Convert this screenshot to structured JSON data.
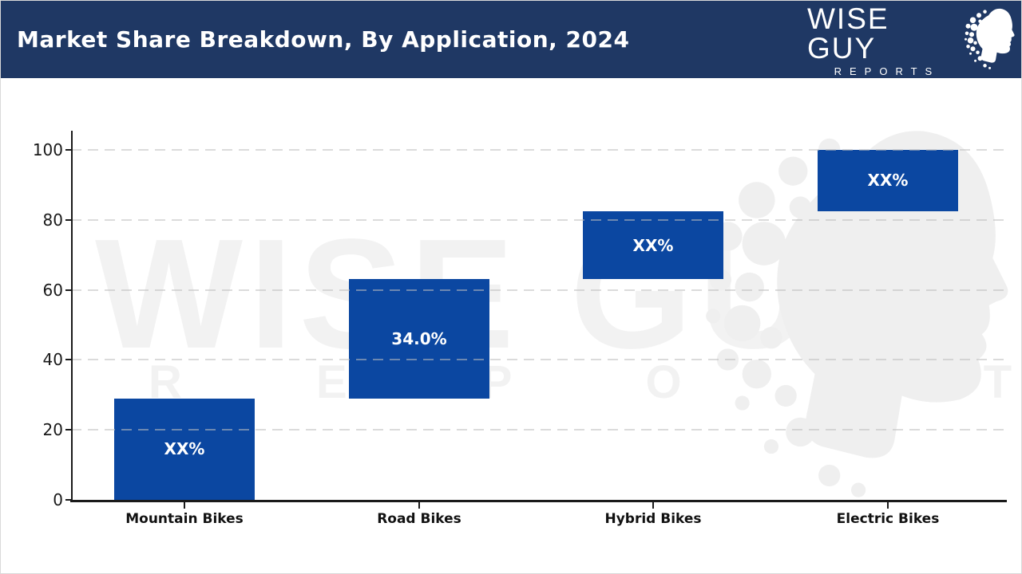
{
  "header": {
    "title": "Market Share Breakdown, By Application, 2024",
    "bg_color": "#1f3864",
    "logo": {
      "line1": "WISE GUY",
      "line2": "REPORTS"
    }
  },
  "watermark": {
    "line1": "WISE GUY",
    "line2": "REPORTS"
  },
  "chart_data": {
    "type": "bar",
    "subtype": "waterfall-floating-bars",
    "title": "Market Share Breakdown, By Application, 2024",
    "categories": [
      "Mountain Bikes",
      "Road Bikes",
      "Hybrid Bikes",
      "Electric Bikes"
    ],
    "segments": [
      {
        "category": "Mountain Bikes",
        "start": 0,
        "end": 29,
        "label": "XX%"
      },
      {
        "category": "Road Bikes",
        "start": 29,
        "end": 63,
        "label": "34.0%"
      },
      {
        "category": "Hybrid Bikes",
        "start": 63,
        "end": 82.5,
        "label": "XX%"
      },
      {
        "category": "Electric Bikes",
        "start": 82.5,
        "end": 100,
        "label": "XX%"
      }
    ],
    "y_ticks": [
      0,
      20,
      40,
      60,
      80,
      100
    ],
    "ylim": [
      0,
      105
    ],
    "xlabel": "",
    "ylabel": "",
    "grid": "dashed-horizontal-over-bars",
    "legend": "none",
    "bar_color": "#0b47a1",
    "bar_label_color": "#ffffff"
  }
}
